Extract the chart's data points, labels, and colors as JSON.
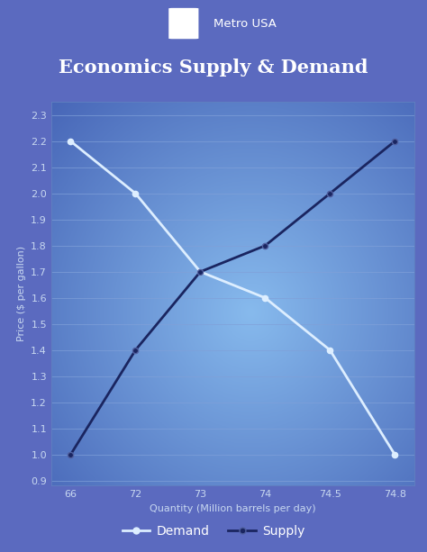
{
  "title": "Economics Supply & Demand",
  "xlabel": "Quantity (Million barrels per day)",
  "ylabel": "Price ($ per gallon)",
  "logo_text": "Metro USA",
  "bg_color": "#5b6abf",
  "title_bg_color": "#1e2d6b",
  "plot_bg_light": "#7ab0e8",
  "plot_bg_dark": "#4a6ac0",
  "grid_color": "#80a0d8",
  "tick_label_color": "#c8d8f0",
  "demand_x_pos": [
    0,
    1,
    2,
    3,
    4,
    5
  ],
  "demand_y": [
    2.2,
    2.0,
    1.7,
    1.6,
    1.4,
    1.0
  ],
  "supply_y": [
    1.0,
    1.4,
    1.7,
    1.8,
    2.0,
    2.2
  ],
  "x_labels": [
    "66",
    "72",
    "73",
    "74",
    "74.5",
    "74.8"
  ],
  "demand_color": "#ddeeff",
  "supply_color": "#1a2560",
  "ylim": [
    0.88,
    2.35
  ],
  "xlim": [
    -0.3,
    5.3
  ],
  "yticks": [
    0.9,
    1.0,
    1.1,
    1.2,
    1.3,
    1.4,
    1.5,
    1.6,
    1.7,
    1.8,
    1.9,
    2.0,
    2.1,
    2.2,
    2.3
  ]
}
